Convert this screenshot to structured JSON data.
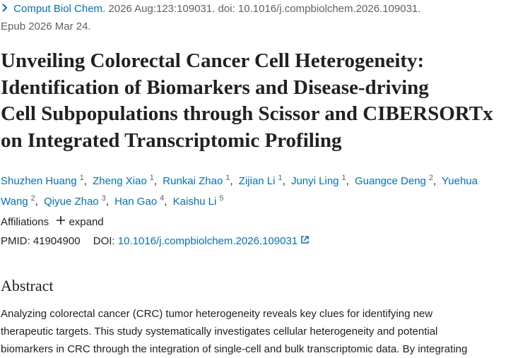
{
  "citation": {
    "journal": "Comput Biol Chem.",
    "details": "2026 Aug:123:109031. doi: 10.1016/j.compbiolchem.2026.109031.",
    "epub": "Epub 2026 Mar 24."
  },
  "title_lines": [
    "Unveiling Colorectal Cancer Cell Heterogeneity:",
    "Identification of Biomarkers and Disease-driving",
    "Cell Subpopulations through Scissor and CIBERSORTx",
    "on Integrated Transcriptomic Profiling"
  ],
  "authors": [
    {
      "name": "Shuzhen Huang",
      "affiliation": "1"
    },
    {
      "name": "Zheng Xiao",
      "affiliation": "1"
    },
    {
      "name": "Runkai Zhao",
      "affiliation": "1"
    },
    {
      "name": "Zijian Li",
      "affiliation": "1"
    },
    {
      "name": "Junyi Ling",
      "affiliation": "1"
    },
    {
      "name": "Guangce Deng",
      "affiliation": "2"
    },
    {
      "name": "Yuehua Wang",
      "affiliation": "2"
    },
    {
      "name": "Qiyue Zhao",
      "affiliation": "3"
    },
    {
      "name": "Han Gao",
      "affiliation": "4"
    },
    {
      "name": "Kaishu Li",
      "affiliation": "5"
    }
  ],
  "author_separator": ",",
  "affiliations": {
    "label": "Affiliations",
    "toggle": "expand"
  },
  "identifiers": {
    "pmid_label": "PMID:",
    "pmid": "41904900",
    "doi_label": "DOI:",
    "doi": "10.1016/j.compbiolchem.2026.109031"
  },
  "abstract": {
    "heading": "Abstract",
    "lines": [
      "Analyzing colorectal cancer (CRC) tumor heterogeneity reveals key clues for identifying new",
      "therapeutic targets. This study systematically investigates cellular heterogeneity and potential",
      "biomarkers in CRC through the integration of single-cell and bulk transcriptomic data. By integrating"
    ]
  }
}
